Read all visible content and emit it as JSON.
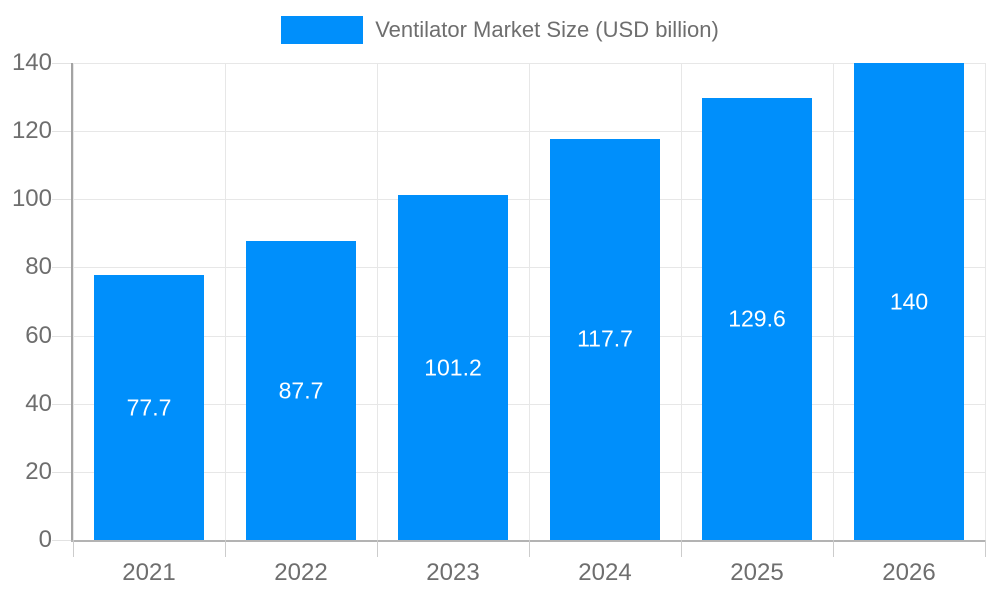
{
  "legend": {
    "label": "Ventilator Market Size (USD billion)",
    "swatch_color": "#008FFB"
  },
  "chart_data": {
    "type": "bar",
    "title": "Ventilator Market Size (USD billion)",
    "categories": [
      "2021",
      "2022",
      "2023",
      "2024",
      "2025",
      "2026"
    ],
    "values": [
      77.7,
      87.7,
      101.2,
      117.7,
      129.6,
      140
    ],
    "value_labels": [
      "77.7",
      "87.7",
      "101.2",
      "117.7",
      "129.6",
      "140"
    ],
    "xlabel": "",
    "ylabel": "",
    "ylim": [
      0,
      140
    ],
    "yticks": [
      0,
      20,
      40,
      60,
      80,
      100,
      120,
      140
    ],
    "grid": true,
    "legend_position": "top-center",
    "bar_color": "#008FFB",
    "axis_label_color": "#6e6e6e",
    "value_label_color": "#ffffff",
    "gridline_color": "#e7e7e7"
  }
}
